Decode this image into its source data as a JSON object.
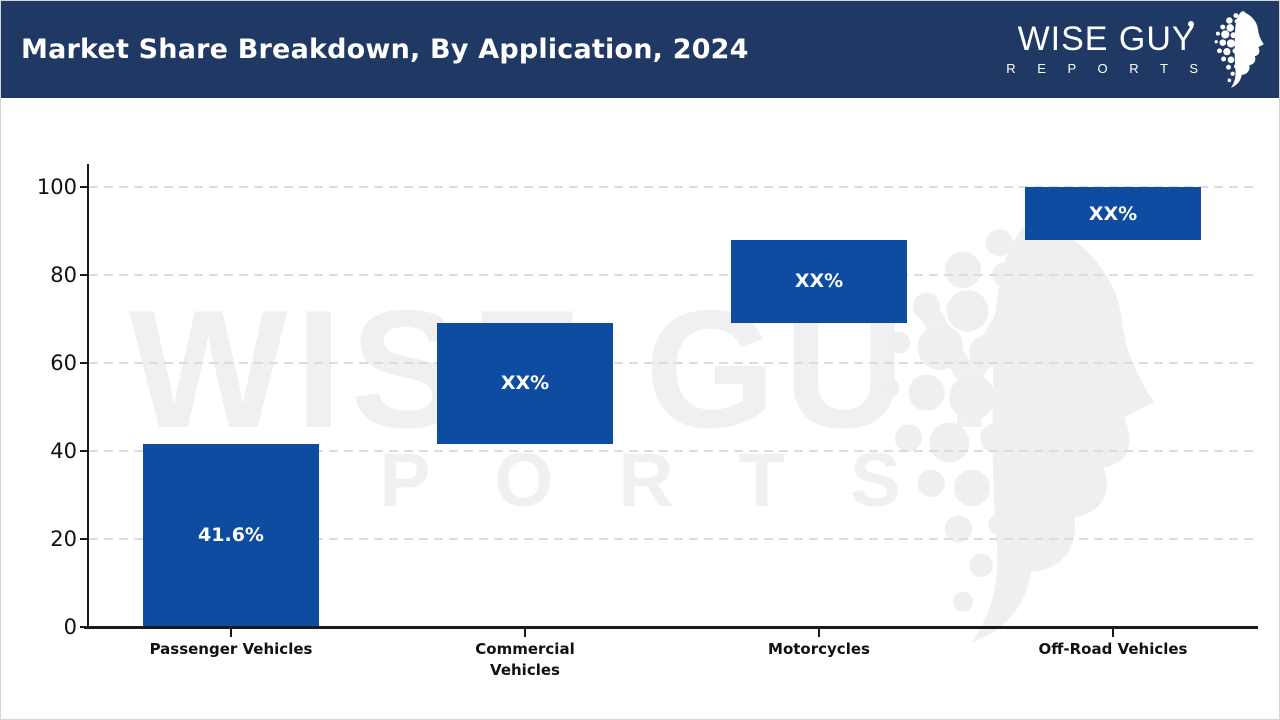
{
  "header": {
    "title": "Market Share Breakdown, By Application, 2024",
    "bg_color": "#1f3864",
    "brand": {
      "line1": "WISE GUY",
      "line2": "R E P O R T S"
    }
  },
  "watermark": {
    "line1": "WISE GUY",
    "line2": "R E P O R T S"
  },
  "chart_data": {
    "type": "bar",
    "variant": "waterfall-stacked-share",
    "title": "Market Share Breakdown, By Application, 2024",
    "categories": [
      "Passenger Vehicles",
      "Commercial Vehicles",
      "Motorcycles",
      "Off-Road Vehicles"
    ],
    "segments": [
      {
        "category": "Passenger Vehicles",
        "category_display": "Passenger Vehicles",
        "start": 0,
        "end": 41.6,
        "value_label": "41.6%"
      },
      {
        "category": "Commercial Vehicles",
        "category_display": "Commercial\nVehicles",
        "start": 41.6,
        "end": 69.2,
        "value_label": "XX%"
      },
      {
        "category": "Motorcycles",
        "category_display": "Motorcycles",
        "start": 69.2,
        "end": 87.9,
        "value_label": "XX%"
      },
      {
        "category": "Off-Road Vehicles",
        "category_display": "Off-Road Vehicles",
        "start": 87.9,
        "end": 100,
        "value_label": "XX%"
      }
    ],
    "y_ticks": [
      0,
      20,
      40,
      60,
      80,
      100
    ],
    "ylim": [
      0,
      105
    ],
    "xlabel": "",
    "ylabel": "",
    "legend": "none",
    "grid": "horizontal-dashed",
    "bar_color": "#0d4ca0",
    "bar_label_color": "#ffffff",
    "grid_color": "#dcdcdf",
    "axis_color": "#1a1a1a"
  }
}
